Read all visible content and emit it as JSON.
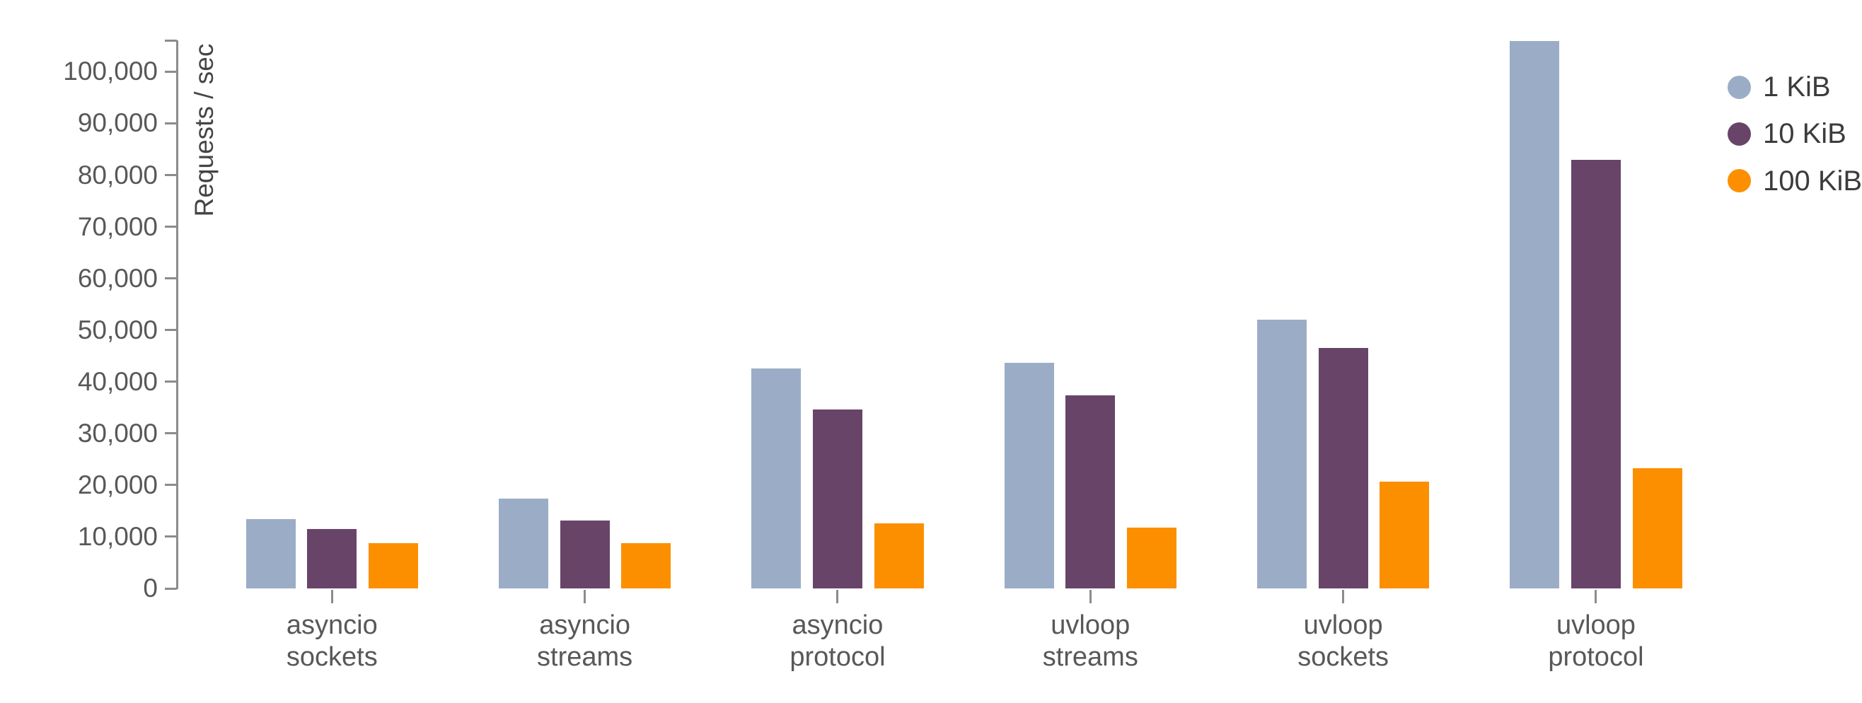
{
  "chart_data": {
    "type": "bar",
    "title": "",
    "ylabel": "Requests / sec",
    "xlabel": "",
    "grid": false,
    "legend_position": "top-right",
    "ylim": [
      0,
      106000
    ],
    "yticks": [
      0,
      10000,
      20000,
      30000,
      40000,
      50000,
      60000,
      70000,
      80000,
      90000,
      100000
    ],
    "ytick_labels": [
      "0",
      "10,000",
      "20,000",
      "30,000",
      "40,000",
      "50,000",
      "60,000",
      "70,000",
      "80,000",
      "90,000",
      "100,000"
    ],
    "categories": [
      [
        "asyncio",
        "sockets"
      ],
      [
        "asyncio",
        "streams"
      ],
      [
        "asyncio",
        "protocol"
      ],
      [
        "uvloop",
        "streams"
      ],
      [
        "uvloop",
        "sockets"
      ],
      [
        "uvloop",
        "protocol"
      ]
    ],
    "series": [
      {
        "name": "1 KiB",
        "color": "#9badc6",
        "values": [
          13400,
          17400,
          42600,
          43600,
          52000,
          106000
        ]
      },
      {
        "name": "10 KiB",
        "color": "#684568",
        "values": [
          11500,
          13100,
          34600,
          37400,
          46600,
          83000
        ]
      },
      {
        "name": "100 KiB",
        "color": "#fc8f00",
        "values": [
          8700,
          8700,
          12600,
          11800,
          20600,
          23300
        ]
      }
    ]
  },
  "style": {
    "background": "#ffffff",
    "axis_color": "#8e8a8f",
    "tick_label_color": "#58585a",
    "axis_label_color": "#454547",
    "legend_text_color": "#3c3c3c"
  }
}
